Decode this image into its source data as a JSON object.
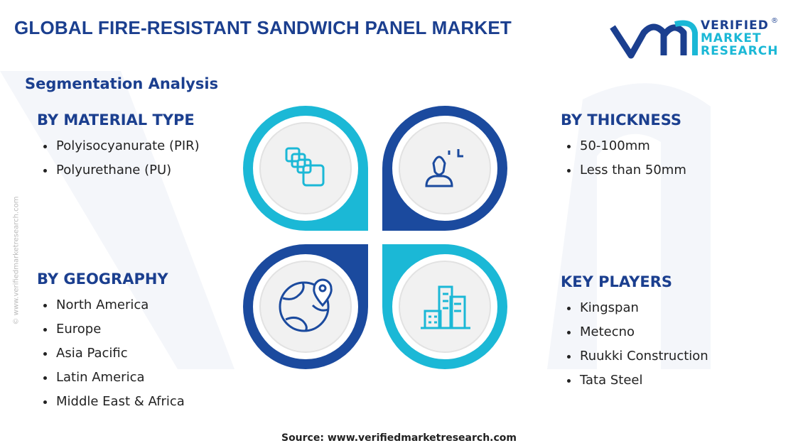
{
  "header": {
    "title": "GLOBAL FIRE-RESISTANT SANDWICH PANEL MARKET",
    "logo": [
      "VERIFIED",
      "MARKET",
      "RESEARCH"
    ],
    "logo_mark": "®"
  },
  "subtitle": "Segmentation Analysis",
  "segments": [
    {
      "heading": "BY MATERIAL TYPE",
      "items": [
        "Polyisocyanurate (PIR)",
        "Polyurethane (PU)"
      ]
    },
    {
      "heading": "BY THICKNESS",
      "items": [
        "50-100mm",
        "Less than 50mm"
      ]
    },
    {
      "heading": "BY GEOGRAPHY",
      "items": [
        "North America",
        "Europe",
        "Asia Pacific",
        "Latin America",
        "Middle East & Africa"
      ]
    },
    {
      "heading": "KEY PLAYERS",
      "items": [
        "Kingspan",
        "Metecno",
        "Ruukki Construction",
        "Tata Steel"
      ]
    }
  ],
  "watermark": "© www.verifiedmarketresearch.com",
  "source": "Source: www.verifiedmarketresearch.com"
}
